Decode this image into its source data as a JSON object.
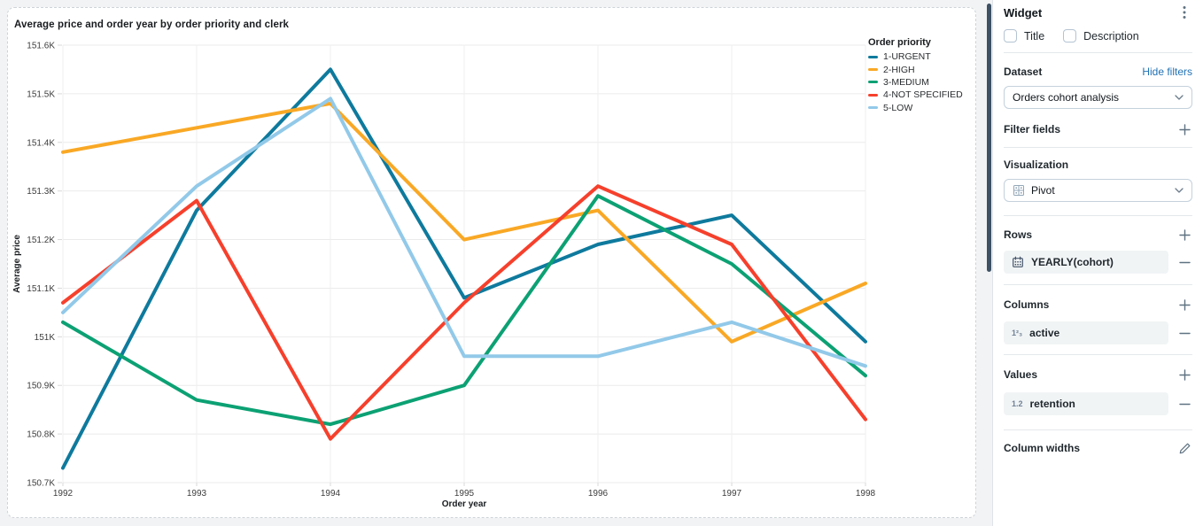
{
  "chart_data": {
    "type": "line",
    "title": "Average price and order year by order priority and clerk",
    "xlabel": "Order year",
    "ylabel": "Average price",
    "x": [
      1992,
      1993,
      1994,
      1995,
      1996,
      1997,
      1998
    ],
    "ylim": [
      150.7,
      151.6
    ],
    "y_tick_step": 0.1,
    "y_unit": "K",
    "grid": true,
    "legend_title": "Order priority",
    "legend_position": "right",
    "series": [
      {
        "name": "1-URGENT",
        "color": "#0E7A9D",
        "values": [
          150.73,
          151.26,
          151.55,
          151.08,
          151.19,
          151.25,
          150.99
        ]
      },
      {
        "name": "2-HIGH",
        "color": "#F9A825",
        "values": [
          151.38,
          151.43,
          151.48,
          151.2,
          151.26,
          150.99,
          151.11
        ]
      },
      {
        "name": "3-MEDIUM",
        "color": "#0CA173",
        "values": [
          151.03,
          150.87,
          150.82,
          150.9,
          151.29,
          151.15,
          150.92
        ]
      },
      {
        "name": "4-NOT SPECIFIED",
        "color": "#F6402C",
        "values": [
          151.07,
          151.28,
          150.79,
          151.07,
          151.31,
          151.19,
          150.83
        ]
      },
      {
        "name": "5-LOW",
        "color": "#92C9E9",
        "values": [
          151.05,
          151.31,
          151.49,
          150.96,
          150.96,
          151.03,
          150.94
        ]
      }
    ]
  },
  "panel": {
    "title": "Widget",
    "menu_icon": "kebab-icon",
    "widget_checkboxes": [
      {
        "label": "Title",
        "checked": false
      },
      {
        "label": "Description",
        "checked": false
      }
    ],
    "dataset": {
      "label": "Dataset",
      "action_label": "Hide filters",
      "selected": "Orders cohort analysis",
      "icon": "chevron-down-icon"
    },
    "filter_fields": {
      "label": "Filter fields",
      "icon": "plus-icon"
    },
    "visualization": {
      "label": "Visualization",
      "selected": "Pivot",
      "icon": "pivot-icon"
    },
    "rows": {
      "label": "Rows",
      "add_icon": "plus-icon",
      "item": {
        "label": "YEARLY(cohort)",
        "icon": "calendar-icon",
        "remove_icon": "minus-icon"
      }
    },
    "columns": {
      "label": "Columns",
      "add_icon": "plus-icon",
      "item": {
        "label": "active",
        "icon": "number-icon",
        "icon_text": "1²₃",
        "remove_icon": "minus-icon"
      }
    },
    "values": {
      "label": "Values",
      "add_icon": "plus-icon",
      "item": {
        "label": "retention",
        "icon": "decimal-icon",
        "icon_text": "1.2",
        "remove_icon": "minus-icon"
      }
    },
    "column_widths": {
      "label": "Column widths",
      "icon": "pencil-icon"
    },
    "colors": {
      "link": "#2272B4",
      "scrollbar": "#3E5165"
    }
  }
}
